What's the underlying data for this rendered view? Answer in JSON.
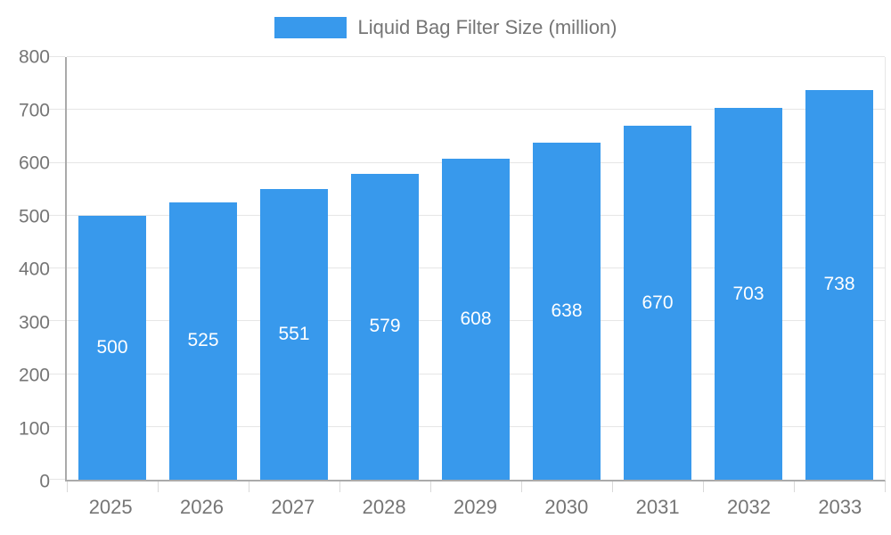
{
  "legend": {
    "label": "Liquid Bag Filter Size (million)",
    "swatch_color": "#3899ec"
  },
  "chart_data": {
    "type": "bar",
    "title": "Liquid Bag Filter Size (million)",
    "categories": [
      "2025",
      "2026",
      "2027",
      "2028",
      "2029",
      "2030",
      "2031",
      "2032",
      "2033"
    ],
    "values": [
      500,
      525,
      551,
      579,
      608,
      638,
      670,
      703,
      738
    ],
    "series": [
      {
        "name": "Liquid Bag Filter Size (million)",
        "values": [
          500,
          525,
          551,
          579,
          608,
          638,
          670,
          703,
          738
        ]
      }
    ],
    "xlabel": "",
    "ylabel": "",
    "ylim": [
      0,
      800
    ],
    "yticks": [
      0,
      100,
      200,
      300,
      400,
      500,
      600,
      700,
      800
    ],
    "grid": "horizontal",
    "legend_position": "top",
    "bar_color": "#3899ec",
    "bar_label_color": "#ffffff",
    "axis_text_color": "#757575",
    "gridline_color": "#e6e6e6",
    "axis_line_color": "#aaaaaa"
  }
}
